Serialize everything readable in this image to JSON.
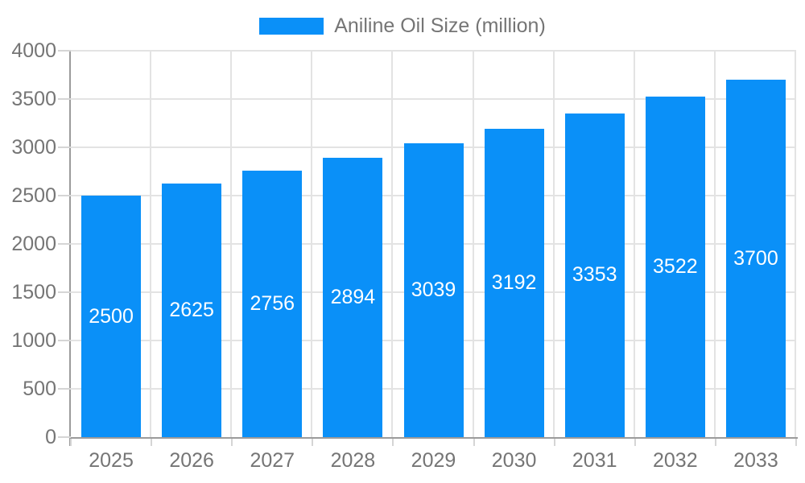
{
  "chart_data": {
    "type": "bar",
    "title": "Aniline Oil Size (million)",
    "series_name": "Aniline Oil Size (million)",
    "categories": [
      "2025",
      "2026",
      "2027",
      "2028",
      "2029",
      "2030",
      "2031",
      "2032",
      "2033"
    ],
    "values": [
      2500,
      2625,
      2756,
      2894,
      3039,
      3192,
      3353,
      3522,
      3700
    ],
    "value_labels_visible": true,
    "xlabel": "",
    "ylabel": "",
    "ylim": [
      0,
      4000
    ],
    "yticks": [
      0,
      500,
      1000,
      1500,
      2000,
      2500,
      3000,
      3500,
      4000
    ],
    "grid": "horizontal and vertical light gray lines",
    "legend_position": "top-center",
    "colors": {
      "bar": "#0a90f8",
      "value_label": "#ffffff",
      "axis_line": "#9b9b9b",
      "grid_line": "#e3e3e3",
      "tick_mark": "#d5d5d5",
      "tick_label": "#757575",
      "background": "#ffffff"
    }
  }
}
